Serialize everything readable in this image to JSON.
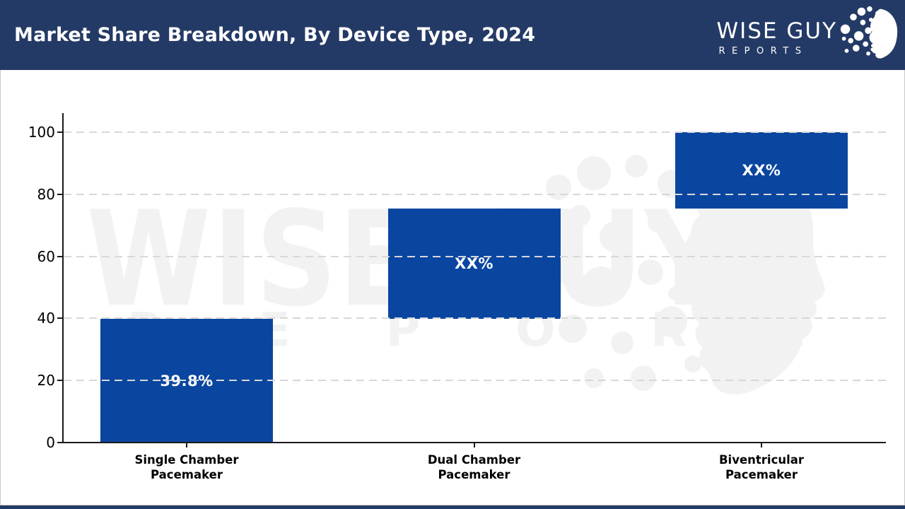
{
  "header": {
    "title": "Market Share Breakdown, By Device Type, 2024",
    "brand_line1": "WISE GUY",
    "brand_line2": "REPORTS",
    "bg_color": "#243a66"
  },
  "watermark": {
    "line1": "WISE GUY",
    "line2": "R E P O R T S"
  },
  "chart_data": {
    "type": "bar",
    "subtype": "floating-segment-waterfall",
    "title": "Market Share Breakdown, By Device Type, 2024",
    "xlabel": "",
    "ylabel": "",
    "ylim": [
      0,
      106
    ],
    "y_ticks": [
      0,
      20,
      40,
      60,
      80,
      100
    ],
    "grid": "horizontal-dashed-over-bars",
    "grid_color": "#d8d8d8",
    "bar_color": "#0a46a0",
    "value_label_color": "#ffffff",
    "legend": "none",
    "bars": [
      {
        "label_line1": "Single Chamber",
        "label_line2": "Pacemaker",
        "start": 0,
        "end": 39.8,
        "segment_value": 39.8,
        "value_label": "39.8%"
      },
      {
        "label_line1": "Dual Chamber",
        "label_line2": "Pacemaker",
        "start": 39.8,
        "end": 75.5,
        "segment_value": 35.7,
        "value_label": "XX%"
      },
      {
        "label_line1": "Biventricular",
        "label_line2": "Pacemaker",
        "start": 75.5,
        "end": 100,
        "segment_value": 24.5,
        "value_label": "XX%"
      }
    ]
  }
}
